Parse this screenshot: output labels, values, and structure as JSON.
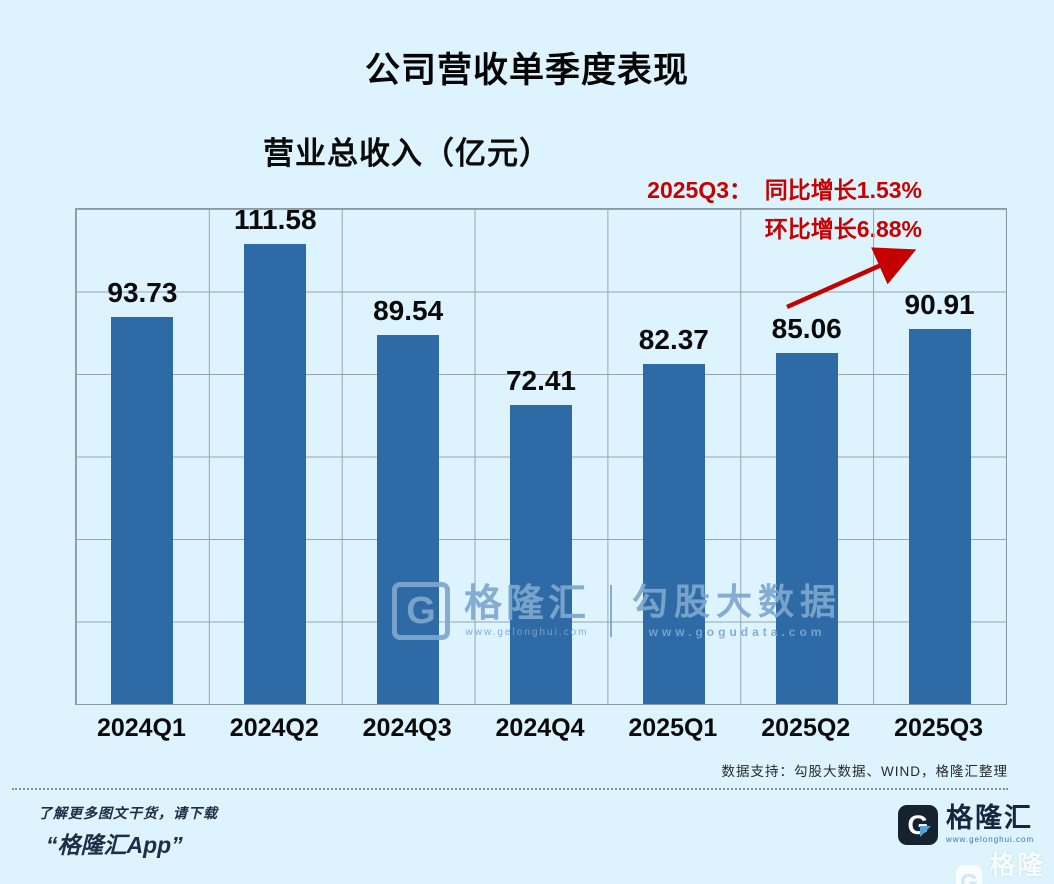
{
  "chart_data": {
    "type": "bar",
    "title": "公司营收单季度表现",
    "ylabel": "营业总收入（亿元）",
    "categories": [
      "2024Q1",
      "2024Q2",
      "2024Q3",
      "2024Q4",
      "2025Q1",
      "2025Q2",
      "2025Q3"
    ],
    "values": [
      93.73,
      111.58,
      89.54,
      72.41,
      82.37,
      85.06,
      90.91
    ],
    "ylim": [
      0,
      120
    ],
    "grid": true,
    "gridline_step": 20,
    "legend": "none",
    "bar_color": "#2e6aa5",
    "annotation": {
      "line1": "2025Q3：  同比增长1.53%",
      "line2": "环比增长6.88%",
      "color": "#c80000"
    }
  },
  "watermark": {
    "brand_initial": "G",
    "brand": "格隆汇",
    "brand_url": "www.gelonghui.com",
    "partner": "勾股大数据",
    "partner_url": "www.gogudata.com"
  },
  "footer": {
    "source": "数据支持：勾股大数据、WIND，格隆汇整理",
    "promo_line1": "了解更多图文干货，请下载",
    "promo_line2": "“格隆汇App”",
    "logo_initial": "G",
    "logo_text": "格隆汇",
    "logo_url": "www.gelonghui.com"
  },
  "colors": {
    "background": "#ddf3fd",
    "bar": "#2e6aa5",
    "grid": "#9aa4ad",
    "accent_red": "#c80000",
    "watermark_blue": "#7ea8ce"
  }
}
